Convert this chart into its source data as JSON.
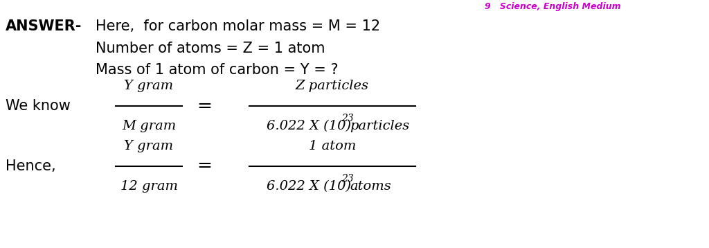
{
  "bg_color": "#ffffff",
  "answer_label": "ANSWER-",
  "line1": "Here,  for carbon molar mass = M = 12",
  "line2": "Number of atoms = Z = 1 atom",
  "line3": "Mass of 1 atom of carbon = Y = ?",
  "weknow_label": "We know",
  "hence_label": "Hence,",
  "frac1_num": "Y gram",
  "frac1_den": "M gram",
  "frac2_num": "Z particles",
  "frac2_den_base": "6.022 X (10)",
  "frac2_den_exp": "23",
  "frac2_den_suffix": "particles",
  "frac3_num": "Y gram",
  "frac3_den": "12 gram",
  "frac4_num": "1 atom",
  "frac4_den_base": "6.022 X (10)",
  "frac4_den_exp": "23",
  "frac4_den_suffix": "atoms",
  "top_right_text": "9   Science, English Medium",
  "top_right_color": "#cc00cc",
  "fs_main": 15,
  "fs_italic": 14,
  "fs_sup": 10
}
